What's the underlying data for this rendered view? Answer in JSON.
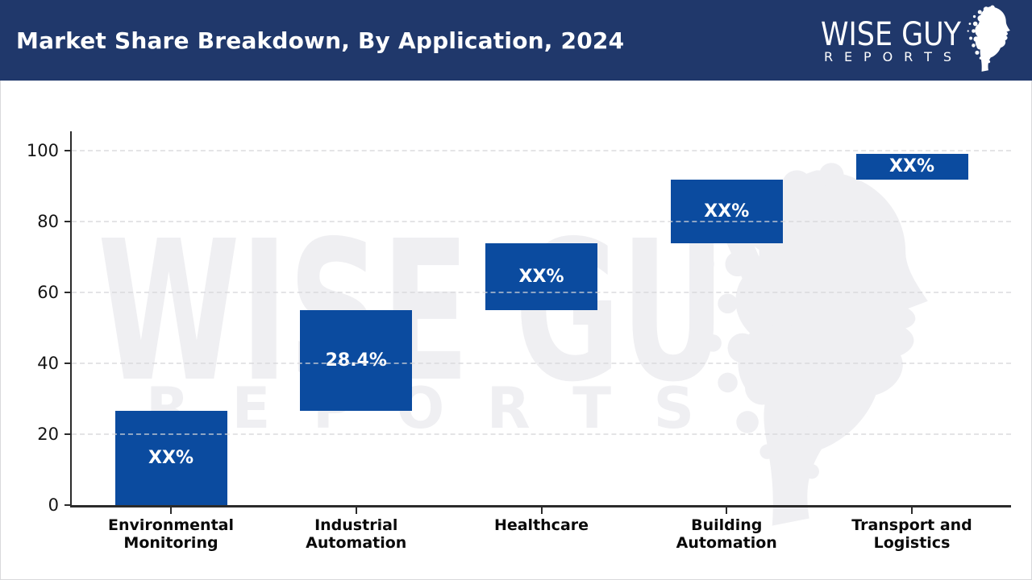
{
  "header": {
    "title": "Market Share Breakdown, By Application, 2024",
    "logo": {
      "name": "WISE GUY",
      "subname": "R E P O R T S"
    }
  },
  "watermark": {
    "line1": "WISE GUY",
    "line2": "R E P O R T S"
  },
  "colors": {
    "header_bg": "#20386B",
    "bar": "#0B4B9F",
    "bar_label_text": "#FFFFFF",
    "grid": "#DCDCDC",
    "axis": "#2B2B2B",
    "watermark": "#EFEFF2",
    "title_text": "#FFFFFF"
  },
  "chart_data": {
    "type": "bar",
    "subtype": "waterfall-floating-segments",
    "title": "Market Share Breakdown, By Application, 2024",
    "xlabel": "",
    "ylabel": "",
    "legend": "none",
    "grid": "horizontal-dashed",
    "ylim": [
      0,
      105
    ],
    "yticks": [
      0,
      20,
      40,
      60,
      80,
      100
    ],
    "categories": [
      "Environmental Monitoring",
      "Industrial Automation",
      "Healthcare",
      "Building Automation",
      "Transport and Logistics"
    ],
    "category_lines": [
      [
        "Environmental",
        "Monitoring"
      ],
      [
        "Industrial",
        "Automation"
      ],
      [
        "Healthcare"
      ],
      [
        "Building",
        "Automation"
      ],
      [
        "Transport and",
        "Logistics"
      ]
    ],
    "segments": [
      {
        "category": "Environmental Monitoring",
        "start": 0,
        "end": 26.7,
        "label": "XX%"
      },
      {
        "category": "Industrial Automation",
        "start": 26.7,
        "end": 55.1,
        "label": "28.4%"
      },
      {
        "category": "Healthcare",
        "start": 55.1,
        "end": 73.9,
        "label": "XX%"
      },
      {
        "category": "Building Automation",
        "start": 73.9,
        "end": 91.9,
        "label": "XX%"
      },
      {
        "category": "Transport and Logistics",
        "start": 91.9,
        "end": 99.1,
        "label": "XX%"
      }
    ]
  }
}
